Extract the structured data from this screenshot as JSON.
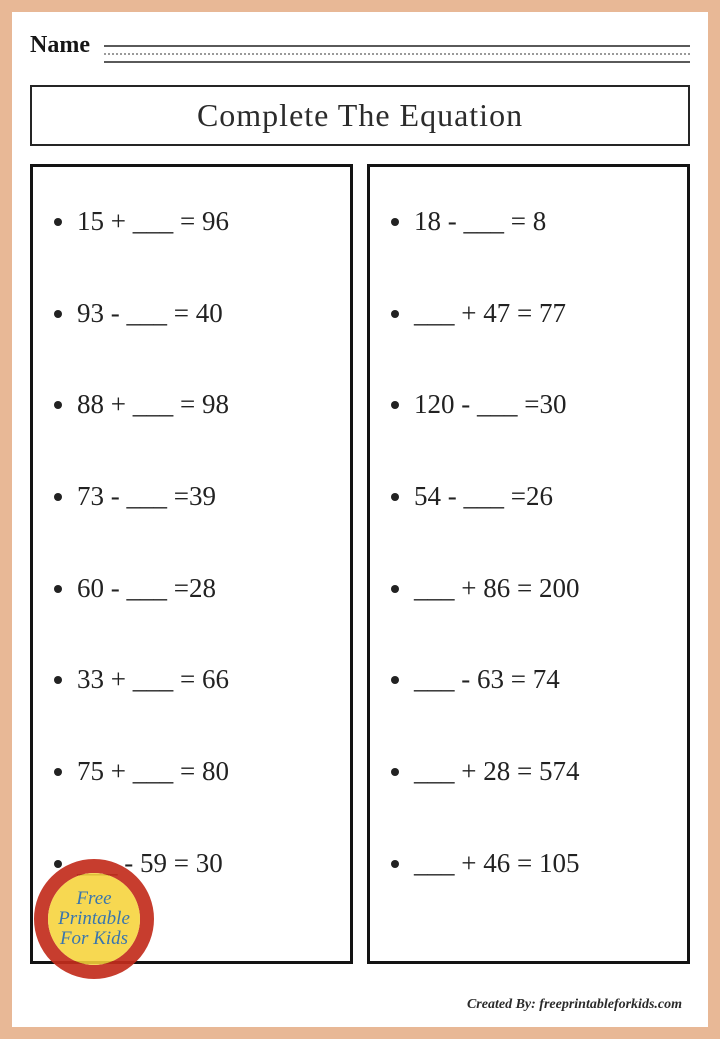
{
  "border_color": "#e8b896",
  "page_bg": "#ffffff",
  "name_label": "Name",
  "title": "Complete The Equation",
  "title_font_family": "Georgia",
  "title_fontsize": 32,
  "equation_font_family": "Comic Sans MS",
  "equation_fontsize": 27,
  "equation_color": "#222222",
  "column_border_color": "#131313",
  "blank": "___",
  "left_column": [
    "15 + ___ = 96",
    "93 - ___ = 40",
    "88 + ___ = 98",
    "73 -  ___ =39",
    "60 - ___ =28",
    "33 + ___ = 66",
    "75 + ___ = 80",
    "___ - 59 = 30"
  ],
  "right_column": [
    "18 - ___ = 8",
    "___ + 47 = 77",
    "120 - ___ =30",
    "54 -  ___ =26",
    "___ + 86 = 200",
    "___ - 63 = 74",
    "___ + 28 = 574",
    "___ + 46 = 105"
  ],
  "watermark": {
    "line1": "Free",
    "line2": "Printable",
    "line3": "For Kids",
    "ring_color": "#c22d1c",
    "fill_color": "#f6d33a",
    "text_color": "#1e63a3"
  },
  "footer": "Created By: freeprintableforkids.com"
}
